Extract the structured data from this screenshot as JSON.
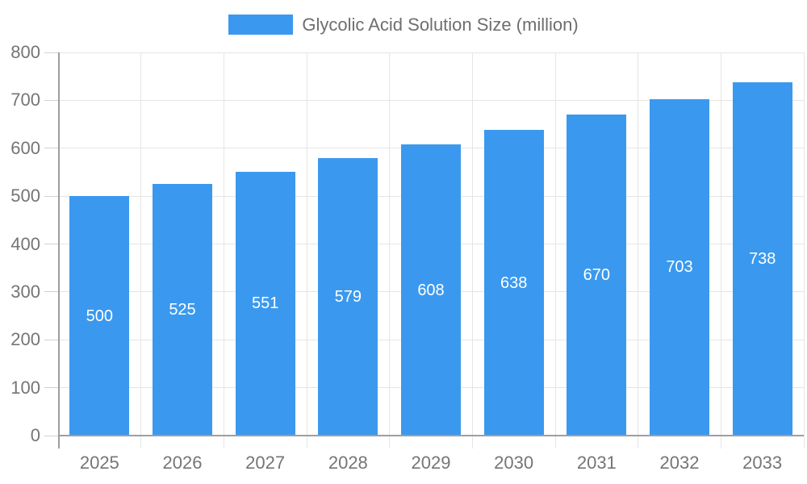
{
  "chart_data": {
    "type": "bar",
    "title": "Glycolic Acid Solution Size (million)",
    "categories": [
      "2025",
      "2026",
      "2027",
      "2028",
      "2029",
      "2030",
      "2031",
      "2032",
      "2033"
    ],
    "values": [
      500,
      525,
      551,
      579,
      608,
      638,
      670,
      703,
      738
    ],
    "xlabel": "",
    "ylabel": "",
    "ylim": [
      0,
      800
    ],
    "ytick_step": 100,
    "ytick_labels": [
      "0",
      "100",
      "200",
      "300",
      "400",
      "500",
      "600",
      "700",
      "800"
    ],
    "grid": true,
    "legend_position": "top",
    "bar_labels_inside": true,
    "bar_label_vertical_align": "center"
  },
  "legend": {
    "label": "Glycolic Acid Solution Size (million)"
  },
  "colors": {
    "bar": "#3A99EF",
    "bar_label": "#FFFFFF",
    "grid": "#E5E5E5",
    "axis": "#9E9E9E",
    "tick": "#D2D2D2",
    "tick_label": "#757575",
    "legend_text": "#6E6E6E",
    "background": "#FFFFFF"
  }
}
